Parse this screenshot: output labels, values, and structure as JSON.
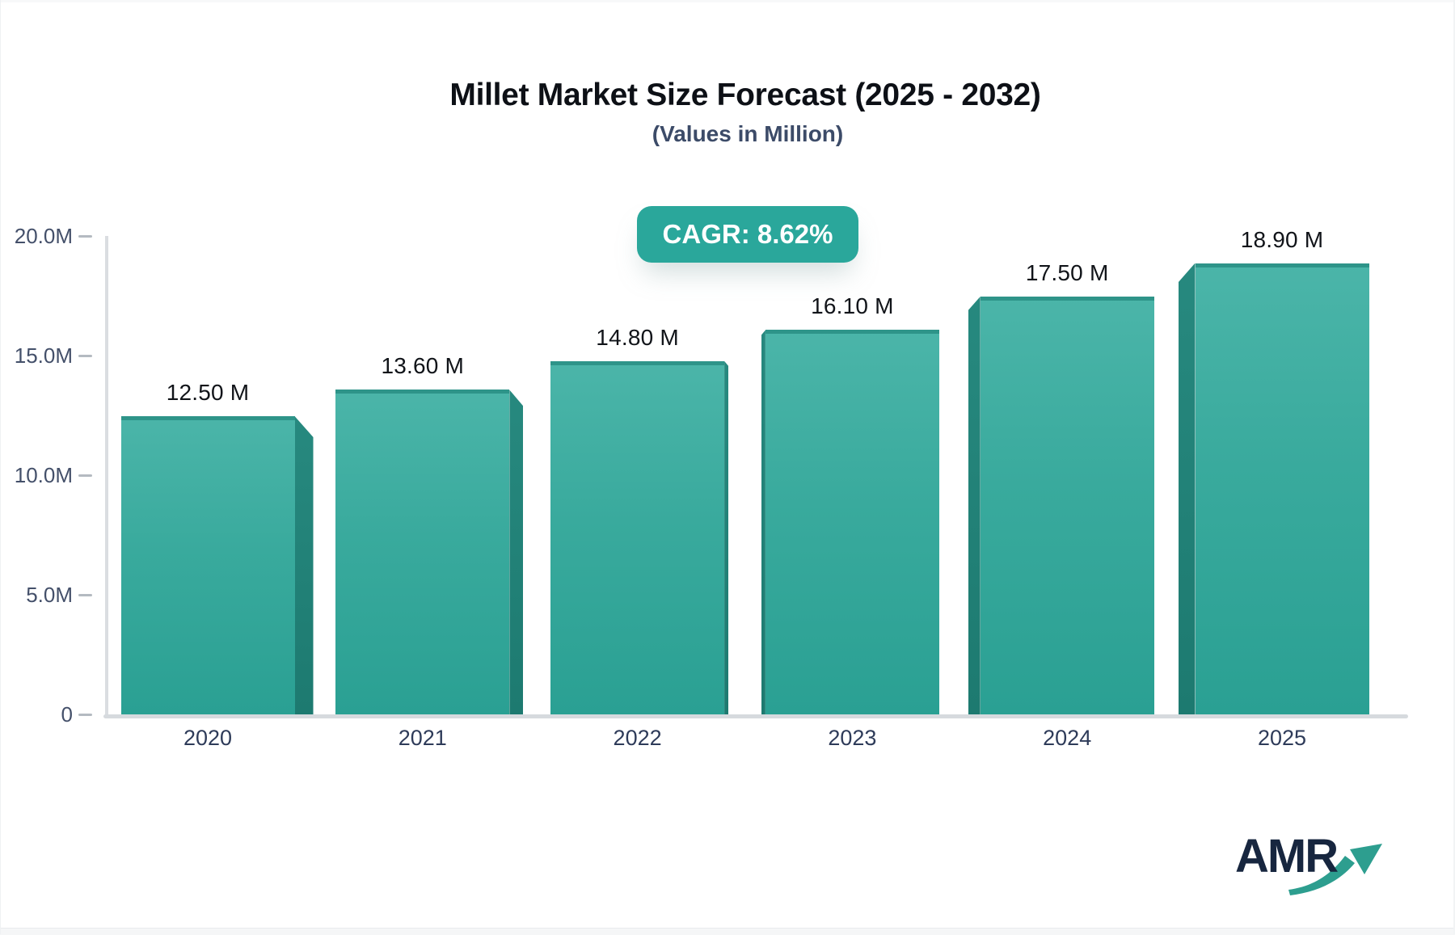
{
  "header": {
    "title": "Millet Market Size Forecast (2025 - 2032)",
    "subtitle": "(Values in Million)"
  },
  "badge": {
    "text": "CAGR: 8.62%",
    "bg_color": "#2aa79b",
    "text_color": "#ffffff"
  },
  "chart_data": {
    "type": "bar",
    "title": "Millet Market Size Forecast (2025 - 2032)",
    "subtitle": "(Values in Million)",
    "cagr_annotation": "CAGR: 8.62%",
    "categories": [
      "2020",
      "2021",
      "2022",
      "2023",
      "2024",
      "2025"
    ],
    "values": [
      12.5,
      13.6,
      14.8,
      16.1,
      17.5,
      18.9
    ],
    "data_labels": [
      "12.50 M",
      "13.60 M",
      "14.80 M",
      "16.10 M",
      "17.50 M",
      "18.90 M"
    ],
    "ylim": [
      0,
      20
    ],
    "yticks": [
      {
        "value": 20,
        "label": "20.0M"
      },
      {
        "value": 15,
        "label": "15.0M"
      },
      {
        "value": 10,
        "label": "10.0M"
      },
      {
        "value": 5,
        "label": "5.0M"
      },
      {
        "value": 0,
        "label": "0"
      }
    ],
    "xlabel": "",
    "ylabel": "",
    "grid": false,
    "legend": "none",
    "bar_colors": {
      "face_top": "#4bb5a9",
      "face_bottom": "#2aa093",
      "top_edge": "#2e9489",
      "side_dark": "#1f7e74"
    },
    "bar_3d_sides": [
      {
        "dir": "right",
        "w": 23
      },
      {
        "dir": "right",
        "w": 17
      },
      {
        "dir": "right",
        "w": 5
      },
      {
        "dir": "left",
        "w": 5
      },
      {
        "dir": "left",
        "w": 15
      },
      {
        "dir": "left",
        "w": 21
      }
    ]
  },
  "logo": {
    "text": "AMR",
    "text_color": "#17263f",
    "arrow_color": "#2d9e8f"
  }
}
